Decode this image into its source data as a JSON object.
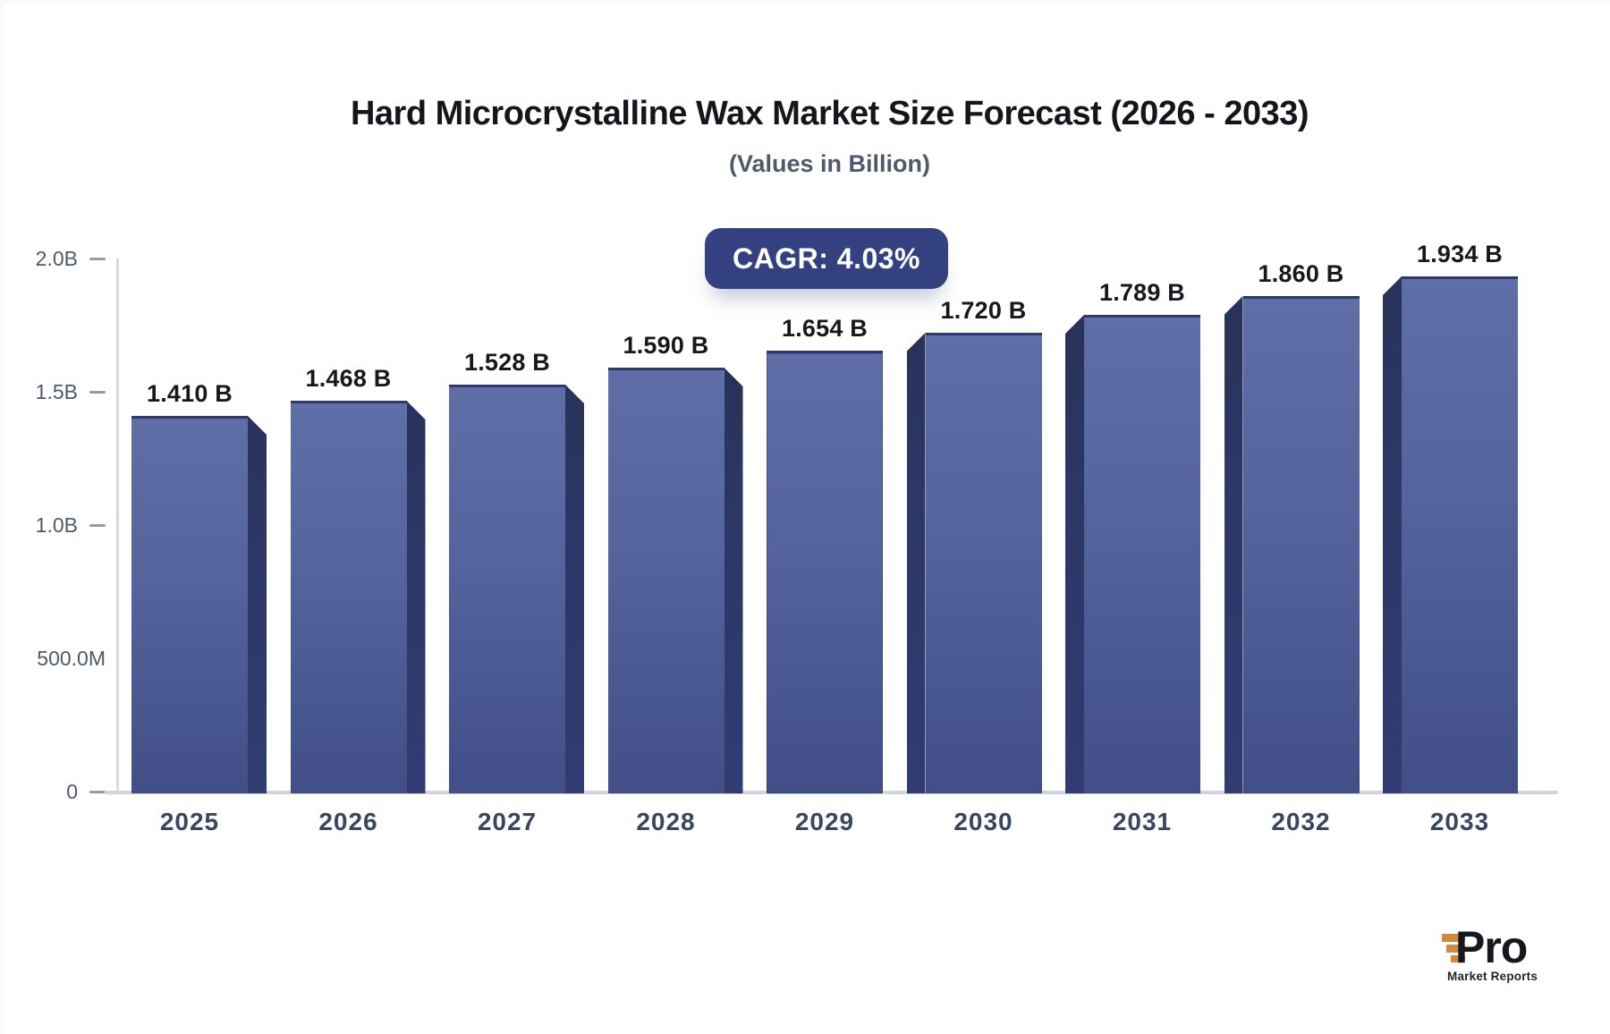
{
  "header": {
    "title": "Hard Microcrystalline Wax Market Size Forecast (2026 - 2033)",
    "subtitle": "(Values in Billion)"
  },
  "badge": {
    "label": "CAGR: 4.03%"
  },
  "chart_data": {
    "type": "bar",
    "title": "Hard Microcrystalline Wax Market Size Forecast (2026 - 2033)",
    "subtitle": "(Values in Billion)",
    "unit": "Billion",
    "cagr": "4.03%",
    "categories": [
      "2025",
      "2026",
      "2027",
      "2028",
      "2029",
      "2030",
      "2031",
      "2032",
      "2033"
    ],
    "values": [
      1.41,
      1.468,
      1.528,
      1.59,
      1.654,
      1.72,
      1.789,
      1.86,
      1.934
    ],
    "value_labels": [
      "1.410 B",
      "1.468 B",
      "1.528 B",
      "1.590 B",
      "1.654 B",
      "1.720 B",
      "1.789 B",
      "1.860 B",
      "1.934 B"
    ],
    "ylim": [
      0,
      2.0
    ],
    "yticks": [
      {
        "label": "2.0B",
        "value": 2.0,
        "dash": true
      },
      {
        "label": "1.5B",
        "value": 1.5,
        "dash": true
      },
      {
        "label": "1.0B",
        "value": 1.0,
        "dash": true
      },
      {
        "label": "500.0M",
        "value": 0.5,
        "dash": false
      },
      {
        "label": "0",
        "value": 0.0,
        "dash": true
      }
    ],
    "grid": false,
    "legend": false
  },
  "colors": {
    "bar_face_top": "#5f6ea6",
    "bar_face_mid": "#54639b",
    "bar_face_bottom": "#414e88",
    "bar_side": "#2c3766",
    "badge_bg": "#334180",
    "badge_text": "#ffffff",
    "title_text": "#15161c",
    "subtitle_text": "#4e5a6b",
    "axis_line": "#d2d5dc",
    "ytick_text": "#4e5a6a",
    "year_text": "#3a4660",
    "value_text": "#17181d",
    "logo_orange": "#d18843",
    "logo_dark": "#17181f"
  },
  "logo": {
    "brand": "Pro",
    "tagline": "Market Reports"
  }
}
